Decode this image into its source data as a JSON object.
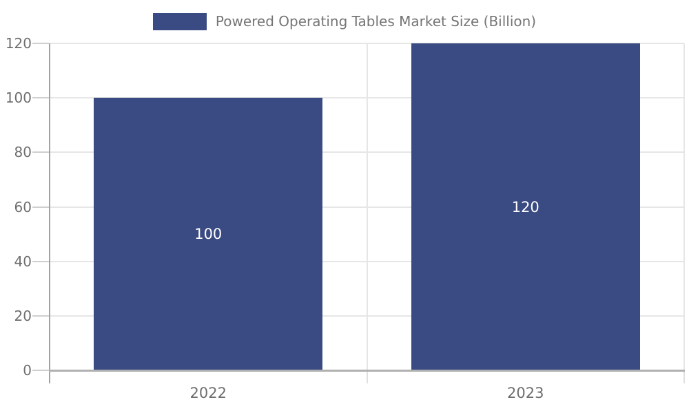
{
  "legend": {
    "label": "Powered Operating Tables Market Size (Billion)"
  },
  "chart_data": {
    "type": "bar",
    "title": "Powered Operating Tables Market Size (Billion)",
    "categories": [
      "2022",
      "2023"
    ],
    "values": [
      100,
      120
    ],
    "bar_labels": [
      "100",
      "120"
    ],
    "xlabel": "",
    "ylabel": "",
    "ylim": [
      0,
      120
    ],
    "yticks": [
      0,
      20,
      40,
      60,
      80,
      100,
      120
    ],
    "grid": true,
    "legend_position": "top-center",
    "colors": {
      "bar": "#3A4A82",
      "bar_label": "#ffffff",
      "axis_text": "#6E6E6E",
      "legend_text": "#757575",
      "grid_line": "#E6E6E6",
      "tick_line": "#CFCFCF",
      "x_tick_line": "#E0E0E0",
      "y_axis_line": "#A3A3A3",
      "x_axis_line": "#B0B0B0",
      "background": "#FFFFFF"
    }
  }
}
